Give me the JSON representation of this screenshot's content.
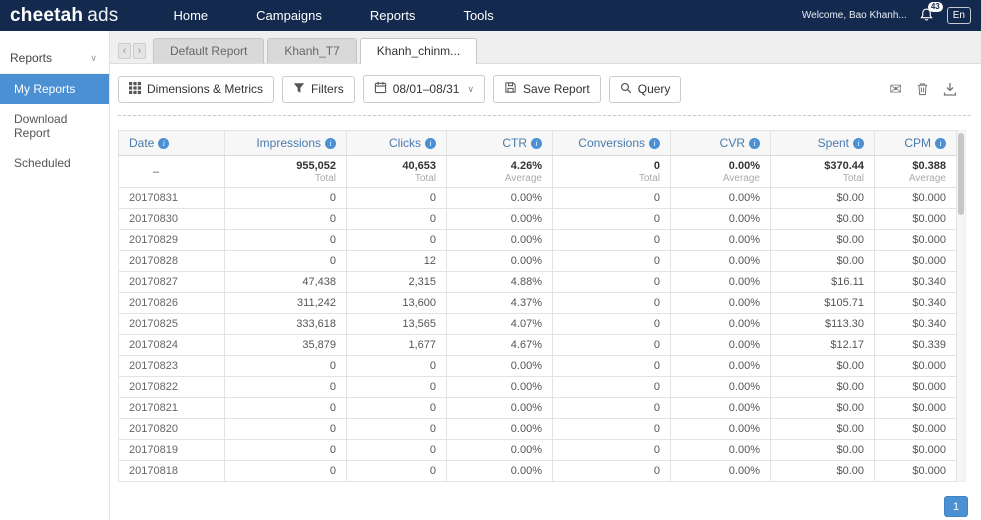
{
  "navbar": {
    "brand_bold": "cheetah",
    "brand_light": "ads",
    "items": [
      {
        "label": "Home"
      },
      {
        "label": "Campaigns"
      },
      {
        "label": "Reports"
      },
      {
        "label": "Tools"
      }
    ],
    "welcome": "Welcome,",
    "username": "Bao Khanh...",
    "notification_count": "43",
    "language": "En"
  },
  "sidebar": {
    "section_label": "Reports",
    "items": [
      {
        "label": "My Reports",
        "active": true
      },
      {
        "label": "Download Report",
        "active": false
      },
      {
        "label": "Scheduled",
        "active": false
      }
    ]
  },
  "tabs": [
    {
      "label": "Default Report",
      "active": false
    },
    {
      "label": "Khanh_T7",
      "active": false
    },
    {
      "label": "Khanh_chinm...",
      "active": true
    }
  ],
  "toolbar": {
    "dimensions_metrics_label": "Dimensions & Metrics",
    "filters_label": "Filters",
    "date_range_label": "08/01–08/31",
    "save_report_label": "Save Report",
    "query_label": "Query"
  },
  "icons": {
    "tab_prev": "‹",
    "tab_next": "›",
    "caret_down": "∨",
    "envelope": "✉",
    "info_glyph": "i",
    "names": [
      "grid-icon",
      "filter-funnel-icon",
      "calendar-icon",
      "save-icon",
      "search-icon",
      "envelope-icon",
      "trash-icon",
      "download-icon",
      "bell-icon"
    ]
  },
  "table": {
    "columns": [
      "Date",
      "Impressions",
      "Clicks",
      "CTR",
      "Conversions",
      "CVR",
      "Spent",
      "CPM"
    ],
    "totals": {
      "date": "–",
      "cells": [
        {
          "v": "955,052",
          "s": "Total"
        },
        {
          "v": "40,653",
          "s": "Total"
        },
        {
          "v": "4.26%",
          "s": "Average"
        },
        {
          "v": "0",
          "s": "Total"
        },
        {
          "v": "0.00%",
          "s": "Average"
        },
        {
          "v": "$370.44",
          "s": "Total"
        },
        {
          "v": "$0.388",
          "s": "Average"
        }
      ]
    },
    "rows": [
      [
        "20170831",
        "0",
        "0",
        "0.00%",
        "0",
        "0.00%",
        "$0.00",
        "$0.000"
      ],
      [
        "20170830",
        "0",
        "0",
        "0.00%",
        "0",
        "0.00%",
        "$0.00",
        "$0.000"
      ],
      [
        "20170829",
        "0",
        "0",
        "0.00%",
        "0",
        "0.00%",
        "$0.00",
        "$0.000"
      ],
      [
        "20170828",
        "0",
        "12",
        "0.00%",
        "0",
        "0.00%",
        "$0.00",
        "$0.000"
      ],
      [
        "20170827",
        "47,438",
        "2,315",
        "4.88%",
        "0",
        "0.00%",
        "$16.11",
        "$0.340"
      ],
      [
        "20170826",
        "311,242",
        "13,600",
        "4.37%",
        "0",
        "0.00%",
        "$105.71",
        "$0.340"
      ],
      [
        "20170825",
        "333,618",
        "13,565",
        "4.07%",
        "0",
        "0.00%",
        "$113.30",
        "$0.340"
      ],
      [
        "20170824",
        "35,879",
        "1,677",
        "4.67%",
        "0",
        "0.00%",
        "$12.17",
        "$0.339"
      ],
      [
        "20170823",
        "0",
        "0",
        "0.00%",
        "0",
        "0.00%",
        "$0.00",
        "$0.000"
      ],
      [
        "20170822",
        "0",
        "0",
        "0.00%",
        "0",
        "0.00%",
        "$0.00",
        "$0.000"
      ],
      [
        "20170821",
        "0",
        "0",
        "0.00%",
        "0",
        "0.00%",
        "$0.00",
        "$0.000"
      ],
      [
        "20170820",
        "0",
        "0",
        "0.00%",
        "0",
        "0.00%",
        "$0.00",
        "$0.000"
      ],
      [
        "20170819",
        "0",
        "0",
        "0.00%",
        "0",
        "0.00%",
        "$0.00",
        "$0.000"
      ],
      [
        "20170818",
        "0",
        "0",
        "0.00%",
        "0",
        "0.00%",
        "$0.00",
        "$0.000"
      ]
    ]
  },
  "pagination": {
    "page": "1"
  }
}
